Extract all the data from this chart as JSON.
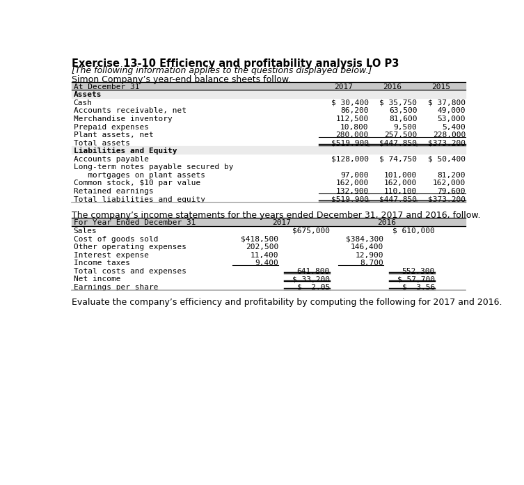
{
  "title": "Exercise 13-10 Efficiency and profitability analysis LO P3",
  "subtitle": "[The following information applies to the questions displayed below.]",
  "intro1": "Simon Company’s year-end balance sheets follow.",
  "intro2": "The company’s income statements for the years ended December 31, 2017 and 2016, follow.",
  "footer": "Evaluate the company’s efficiency and profitability by computing the following for 2017 and 2016.",
  "bg_color": "#ffffff",
  "header_bg": "#c8c8c8",
  "table1_header": [
    "At December 31",
    "2017",
    "2016",
    "2015"
  ],
  "table1_rows": [
    [
      "Assets",
      "",
      "",
      "",
      "bold",
      false,
      false
    ],
    [
      "Cash",
      "$ 30,400",
      "$ 35,750",
      "$ 37,800",
      "normal",
      false,
      false
    ],
    [
      "Accounts receivable, net",
      "86,200",
      "63,500",
      "49,000",
      "normal",
      false,
      false
    ],
    [
      "Merchandise inventory",
      "112,500",
      "81,600",
      "53,000",
      "normal",
      false,
      false
    ],
    [
      "Prepaid expenses",
      "10,800",
      "9,500",
      "5,400",
      "normal",
      false,
      false
    ],
    [
      "Plant assets, net",
      "280,000",
      "257,500",
      "228,000",
      "normal",
      true,
      false
    ],
    [
      "Total assets",
      "$519,900",
      "$447,850",
      "$373,200",
      "normal",
      false,
      true
    ],
    [
      "Liabilities and Equity",
      "",
      "",
      "",
      "bold",
      false,
      false
    ],
    [
      "Accounts payable",
      "$128,000",
      "$ 74,750",
      "$ 50,400",
      "normal",
      false,
      false
    ],
    [
      "Long-term notes payable secured by",
      "",
      "",
      "",
      "normal",
      false,
      false
    ],
    [
      "   mortgages on plant assets",
      "97,000",
      "101,000",
      "81,200",
      "normal",
      false,
      false
    ],
    [
      "Common stock, $10 par value",
      "162,000",
      "162,000",
      "162,000",
      "normal",
      false,
      false
    ],
    [
      "Retained earnings",
      "132,900",
      "110,100",
      "79,600",
      "normal",
      true,
      false
    ],
    [
      "Total liabilities and equity",
      "$519,900",
      "$447,850",
      "$373,200",
      "normal",
      false,
      true
    ]
  ],
  "table2_rows": [
    [
      "Sales",
      "",
      "$675,000",
      "",
      "$ 610,000",
      false,
      false
    ],
    [
      "Cost of goods sold",
      "$418,500",
      "",
      "$384,300",
      "",
      false,
      false
    ],
    [
      "Other operating expenses",
      "202,500",
      "",
      "146,400",
      "",
      false,
      false
    ],
    [
      "Interest expense",
      "11,400",
      "",
      "12,900",
      "",
      false,
      false
    ],
    [
      "Income taxes",
      "9,400",
      "",
      "8,700",
      "",
      true,
      false
    ],
    [
      "Total costs and expenses",
      "",
      "641,800",
      "",
      "552,300",
      false,
      true
    ],
    [
      "Net income",
      "",
      "$ 33,200",
      "",
      "$ 57,700",
      false,
      true
    ],
    [
      "Earnings per share",
      "",
      "$  2.05",
      "",
      "$  3.56",
      false,
      true
    ]
  ]
}
